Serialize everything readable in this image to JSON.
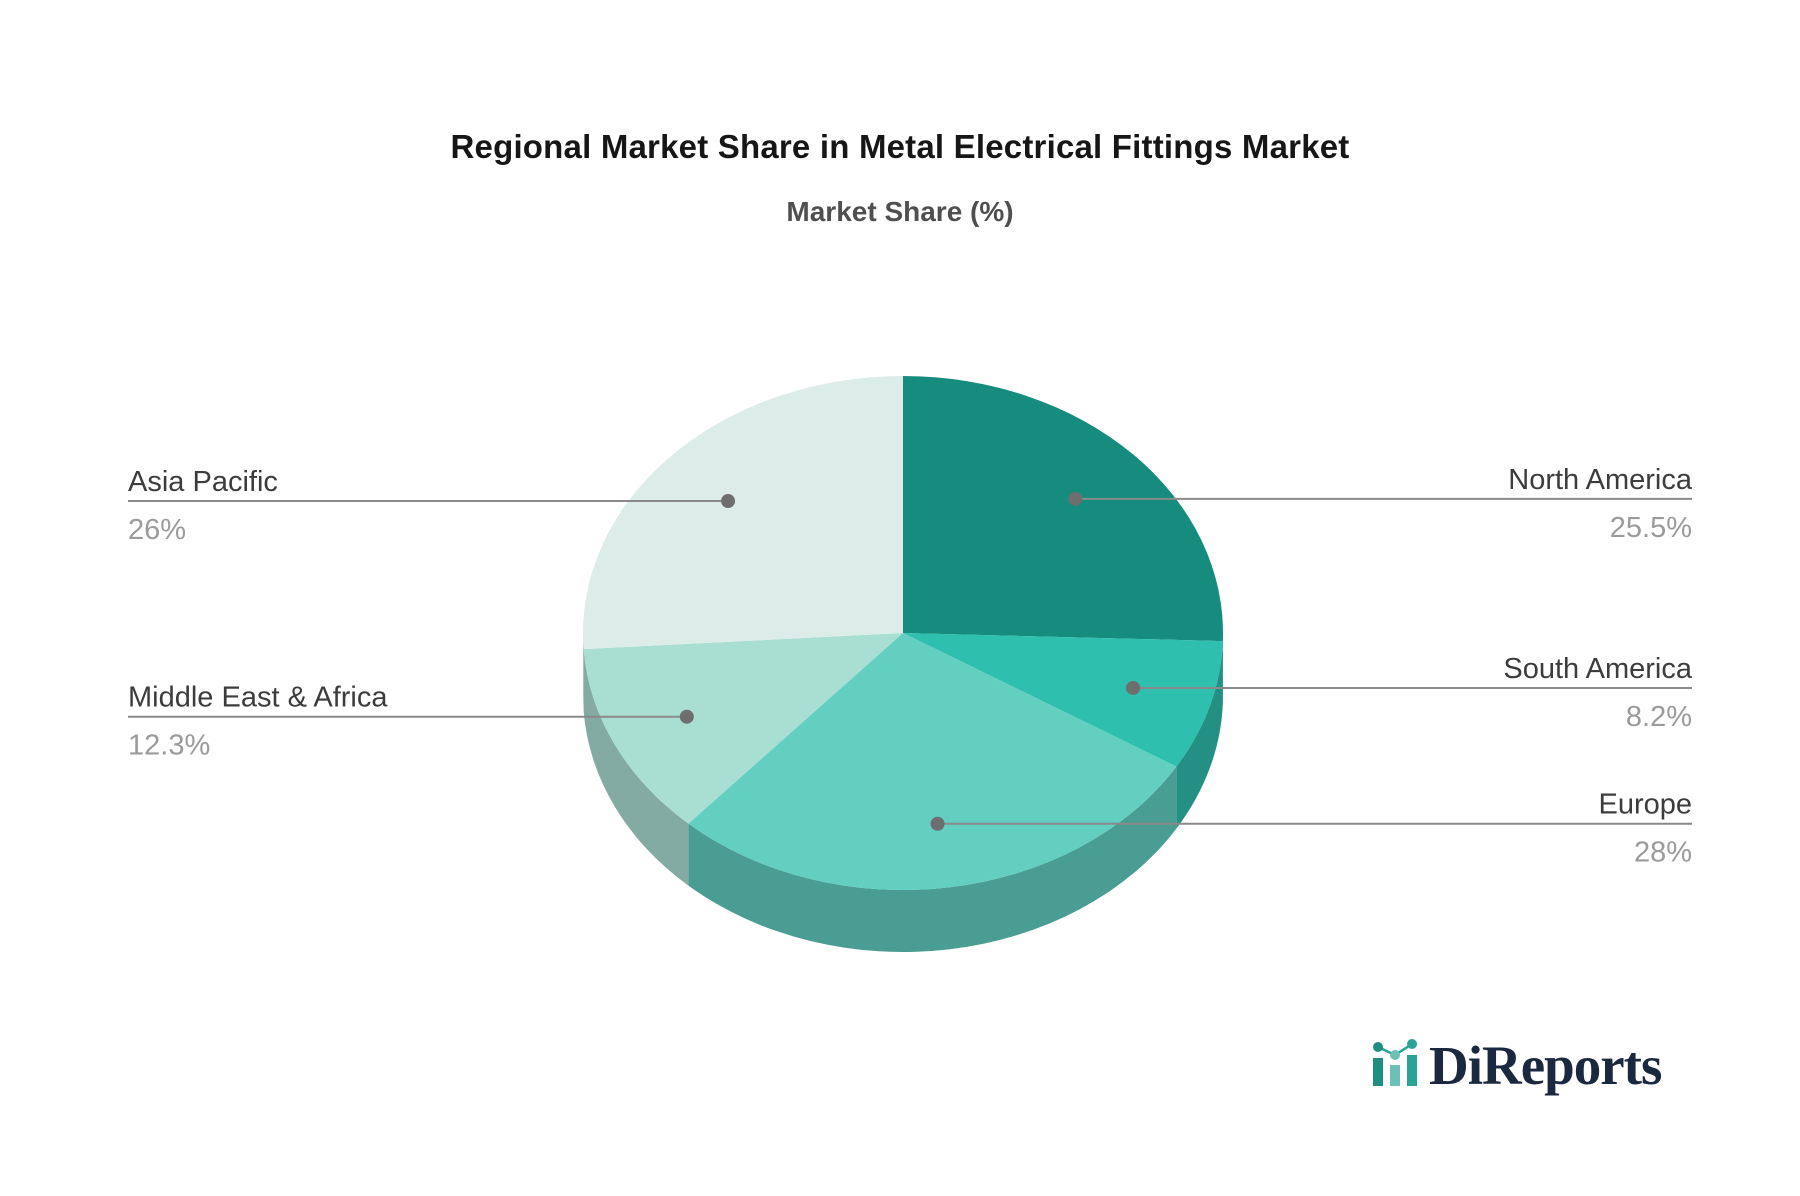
{
  "chart_data": {
    "type": "pie",
    "style": "3d",
    "title": "Regional Market Share in Metal Electrical Fittings Market",
    "subtitle": "Market Share (%)",
    "legend_position": "none",
    "grid": false,
    "slices": [
      {
        "label": "North America",
        "value": 25.5,
        "display_value": "25.5%",
        "color": "#168C7E",
        "side_color": "#0F6A5E"
      },
      {
        "label": "South America",
        "value": 8.2,
        "display_value": "8.2%",
        "color": "#2EBFAE",
        "side_color": "#249084"
      },
      {
        "label": "Europe",
        "value": 28,
        "display_value": "28%",
        "color": "#62CFC1",
        "side_color": "#4A9D93"
      },
      {
        "label": "Middle East & Africa",
        "value": 12.3,
        "display_value": "12.3%",
        "color": "#A9DED3",
        "side_color": "#83ABA3"
      },
      {
        "label": "Asia Pacific",
        "value": 26,
        "display_value": "26%",
        "color": "#DCECE8",
        "side_color": "#A8C7C0"
      }
    ],
    "label_color": "#3C3C3C",
    "value_color": "#9B9B9B",
    "leader_line_color": "#8A8A8A",
    "leader_dot_color": "#6E6E6E",
    "title_color": "#161616",
    "subtitle_color": "#4F4F4F"
  },
  "branding": {
    "name": "DiReports",
    "text_color": "#1B2940",
    "icon_bar_colors": [
      "#1E8E80",
      "#6CC0B4",
      "#2AA396"
    ],
    "icon_line_color": "#2AA396"
  }
}
